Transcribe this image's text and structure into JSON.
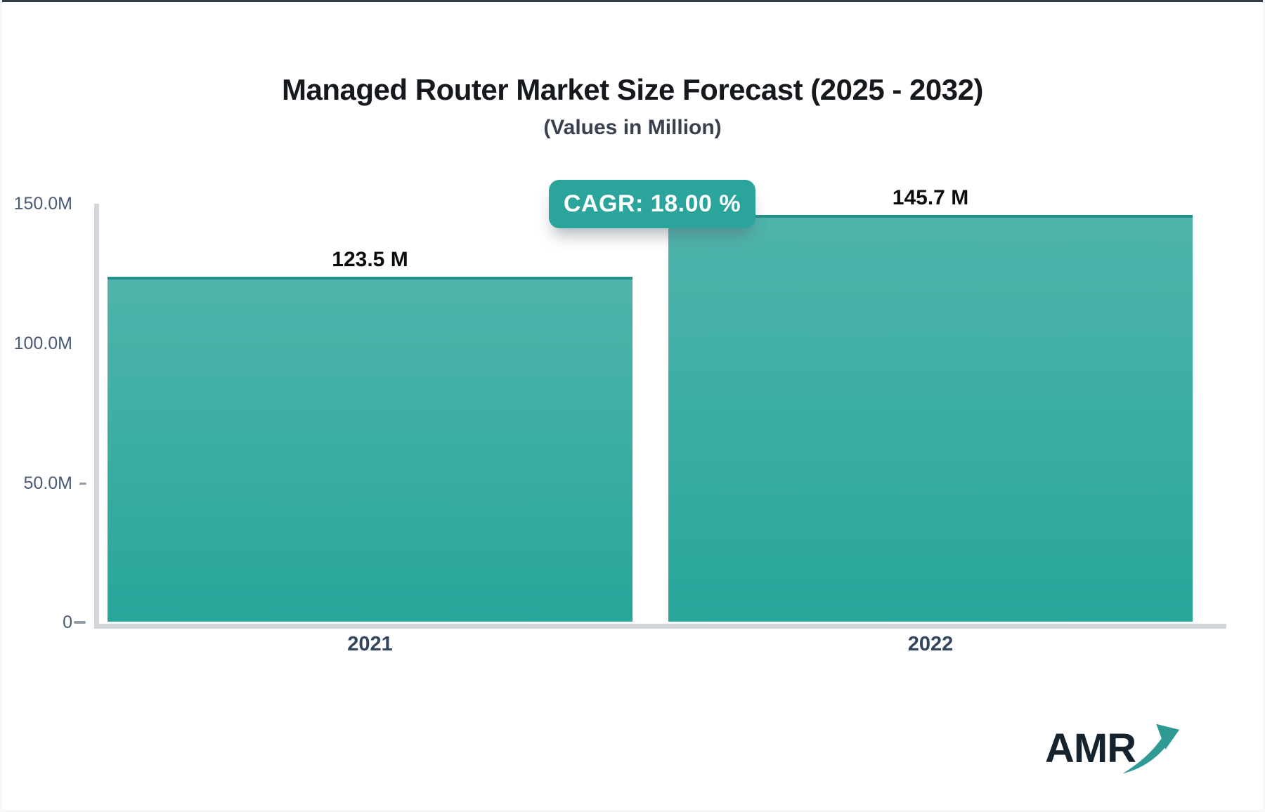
{
  "chart_data": {
    "type": "bar",
    "title": "Managed Router Market Size Forecast (2025 - 2032)",
    "subtitle": "(Values in Million)",
    "categories": [
      "2021",
      "2022"
    ],
    "values": [
      123.5,
      145.7
    ],
    "value_labels": [
      "123.5 M",
      "145.7 M"
    ],
    "unit": "Million",
    "ylim": [
      0,
      150
    ],
    "y_ticks": [
      "150.0M",
      "100.0M",
      "50.0M",
      "0"
    ],
    "grid": false,
    "legend_position": "none",
    "cagr_percent": 18.0,
    "cagr_label": "CAGR: 18.00 %"
  },
  "branding": {
    "logo_text": "AMR",
    "logo_arrow_icon": "growth-arrow-icon"
  },
  "colors": {
    "bar_top": "#4FB4AC",
    "bar_bottom": "#27A69A",
    "bar_edge": "#23908A",
    "badge_bg": "#2BA49B",
    "axis_line": "#D2D5DA",
    "tick_label": "#4A5B76",
    "category_label": "#34435E",
    "value_label": "#0C0C0C",
    "title": "#15181C",
    "subtitle": "#39414F",
    "logo_text": "#16222C",
    "logo_arrow": "#2E9A93",
    "window_edge": "#333D49"
  }
}
